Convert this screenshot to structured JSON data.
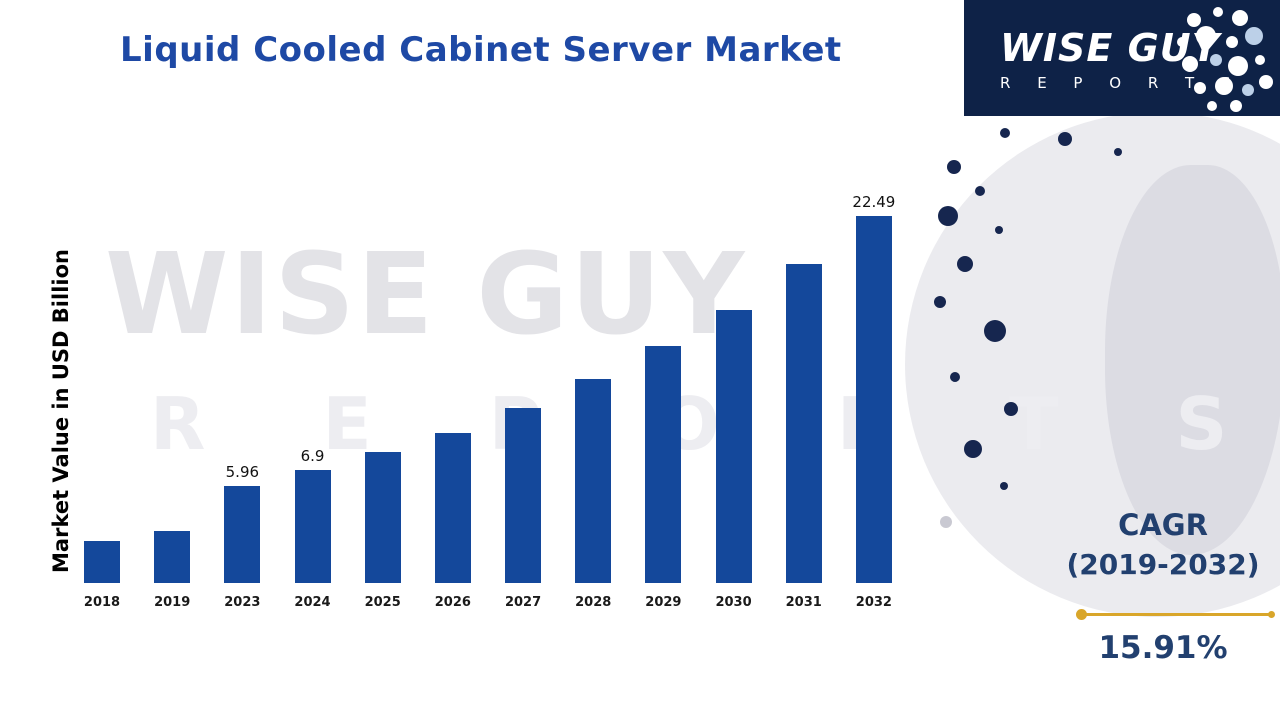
{
  "page": {
    "title": "Liquid Cooled Cabinet Server Market",
    "y_axis_label": "Market Value in USD Billion"
  },
  "logo": {
    "line1": "WISE GUY",
    "line2": "R E P O R T S",
    "icon": "dotted-head-profile-icon"
  },
  "watermark": {
    "line1": "WISE GUY",
    "line2": "R E P O R T S"
  },
  "cagr": {
    "label": "CAGR",
    "range": "(2019-2032)",
    "value": "15.91%"
  },
  "colors": {
    "bar": "#14489b",
    "title": "#1e49a5",
    "navy": "#0e2247",
    "gold": "#d9a62a",
    "cagr_text": "#22406f"
  },
  "chart_data": {
    "type": "bar",
    "title": "Liquid Cooled Cabinet Server Market",
    "xlabel": "",
    "ylabel": "Market Value in USD Billion",
    "categories": [
      "2018",
      "2019",
      "2023",
      "2024",
      "2025",
      "2026",
      "2027",
      "2028",
      "2029",
      "2030",
      "2031",
      "2032"
    ],
    "values": [
      2.6,
      3.2,
      5.96,
      6.9,
      8.0,
      9.2,
      10.7,
      12.5,
      14.5,
      16.7,
      19.5,
      22.49
    ],
    "value_labels": [
      "",
      "",
      "5.96",
      "6.9",
      "",
      "",
      "",
      "",
      "",
      "",
      "",
      "22.49"
    ],
    "ylim": [
      0,
      24
    ],
    "grid": false,
    "legend": false,
    "bar_color": "#14489b"
  }
}
